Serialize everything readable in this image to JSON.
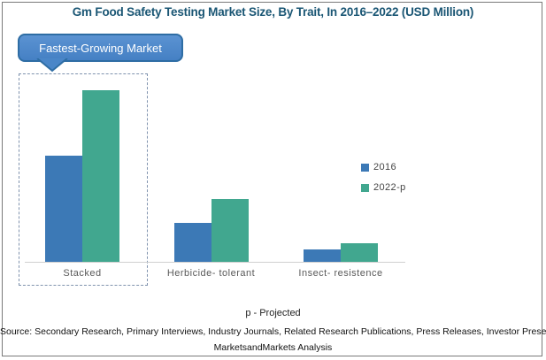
{
  "title": "Gm Food Safety Testing Market Size, By Trait, In 2016–2022 (USD Million)",
  "callout": {
    "label": "Fastest-Growing Market"
  },
  "chart_data": {
    "type": "bar",
    "title": "Gm Food Safety Testing Market Size, By Trait, In 2016–2022 (USD Million)",
    "categories": [
      "Stacked",
      "Herbicide- tolerant",
      "Insect- resistence"
    ],
    "series": [
      {
        "name": "2016",
        "color": "#3c79b6",
        "values": [
          120,
          44,
          14
        ]
      },
      {
        "name": "2022-p",
        "color": "#41a78f",
        "values": [
          194,
          71,
          21
        ]
      }
    ],
    "xlabel": "",
    "ylabel": "",
    "grid": false,
    "axis_values_shown": false,
    "note": "No y-axis scale shown; series values are relative bar heights",
    "legend_position": "right",
    "highlight": {
      "category": "Stacked",
      "style": "dashed-outline",
      "label": "Fastest-Growing Market"
    }
  },
  "footer": {
    "projected_note": "p - Projected",
    "source_line1": "Source: Secondary Research, Primary Interviews, Industry Journals, Related Research Publications, Press Releases, Investor Presentations, and",
    "source_line2": "MarketsandMarkets Analysis"
  },
  "colors": {
    "title": "#1a5674",
    "callout_fill": "#4a86c8",
    "callout_border": "#2e6da4",
    "dashed_outline": "#8093ae",
    "axis_line": "#d0d0d0",
    "category_label": "#595959",
    "frame_border": "#7a7a7a"
  }
}
